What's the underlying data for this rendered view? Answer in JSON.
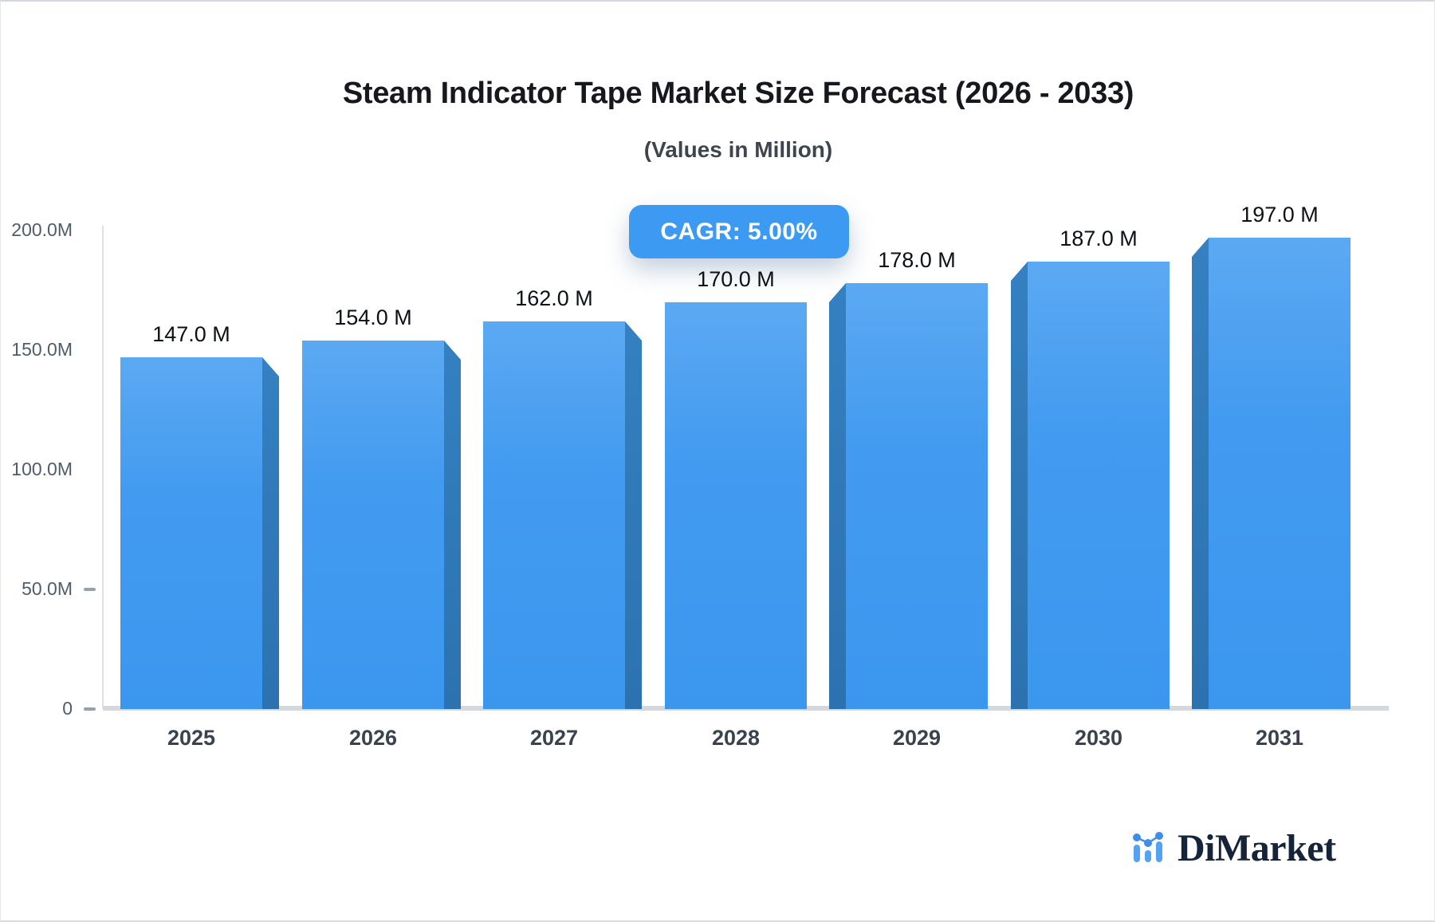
{
  "header": {
    "title": "Steam Indicator Tape Market Size Forecast (2026 - 2033)",
    "subtitle": "(Values in Million)"
  },
  "badge": {
    "label": "CAGR: 5.00%",
    "background": "#3d9af2",
    "text_color": "#ffffff"
  },
  "chart_data": {
    "type": "bar",
    "title": "Steam Indicator Tape Market Size Forecast (2026 - 2033)",
    "subtitle": "(Values in Million)",
    "cagr_annotation": "CAGR: 5.00%",
    "categories": [
      "2025",
      "2026",
      "2027",
      "2028",
      "2029",
      "2030",
      "2031"
    ],
    "values": [
      147,
      154,
      162,
      170,
      178,
      187,
      197
    ],
    "value_labels": [
      "147.0 M",
      "154.0 M",
      "162.0 M",
      "170.0 M",
      "178.0 M",
      "187.0 M",
      "197.0 M"
    ],
    "unit": "M",
    "ylim": [
      0,
      200
    ],
    "y_ticks": [
      {
        "label": "0",
        "value": 0,
        "dash": true
      },
      {
        "label": "50.0M",
        "value": 50,
        "dash": true
      },
      {
        "label": "100.0M",
        "value": 100,
        "dash": false
      },
      {
        "label": "150.0M",
        "value": 150,
        "dash": false
      },
      {
        "label": "200.0M",
        "value": 200,
        "dash": false
      }
    ],
    "grid": false,
    "legend": false,
    "style": "3d-perspective-bars",
    "colors": {
      "bar_front_top": "#5ba9f2",
      "bar_front_bottom": "#3b97ee",
      "bar_side": "#2e76b6",
      "baseline": "#d5d9de",
      "axis_line": "#dde1e6",
      "tick_text": "#505c6b",
      "category_text": "#39434f",
      "value_text": "#0c1117"
    }
  },
  "logo": {
    "text": "DiMarket",
    "icon_bar_color": "#54a2f2",
    "icon_dot_color": "#3e8ee9"
  }
}
